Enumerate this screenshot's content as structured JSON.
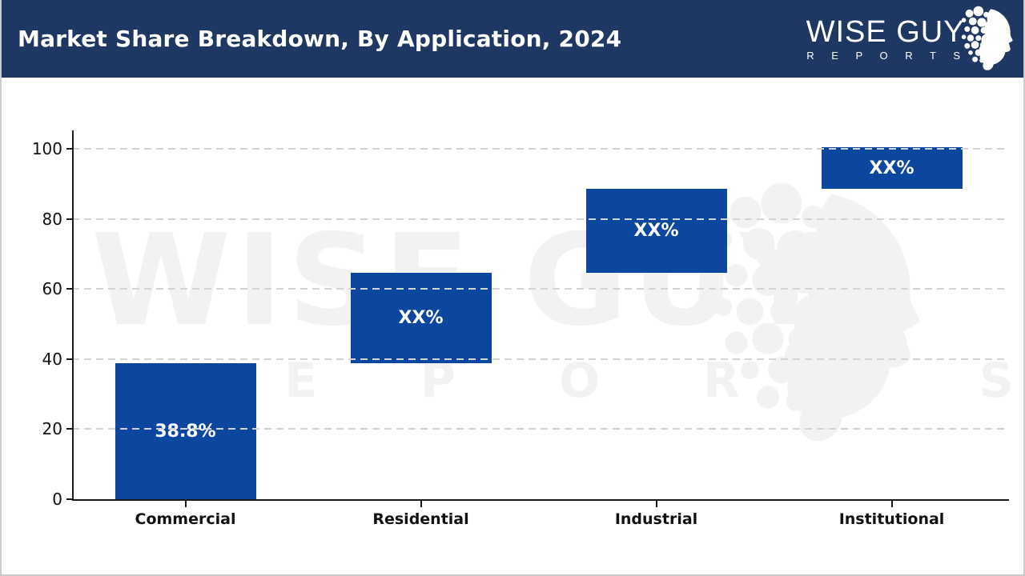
{
  "header": {
    "title": "Market Share Breakdown, By Application, 2024",
    "background_color": "#1f3763",
    "logo": {
      "name": "WISE GUY",
      "subname": "R E P O R T S"
    }
  },
  "watermark": {
    "line1": "WISE GUY",
    "line2": "R E P O R T S"
  },
  "chart_data": {
    "type": "bar",
    "subtype": "waterfall",
    "title": "Market Share Breakdown, By Application, 2024",
    "categories": [
      "Commercial",
      "Residential",
      "Industrial",
      "Institutional"
    ],
    "segments": [
      {
        "category": "Commercial",
        "start": 0,
        "end": 38.8,
        "label": "38.8%"
      },
      {
        "category": "Residential",
        "start": 38.8,
        "end": 64.5,
        "label": "XX%"
      },
      {
        "category": "Industrial",
        "start": 64.5,
        "end": 88.5,
        "label": "XX%"
      },
      {
        "category": "Institutional",
        "start": 88.5,
        "end": 100.4,
        "label": "XX%"
      }
    ],
    "xlabel": "",
    "ylabel": "",
    "ylim": [
      0,
      105
    ],
    "yticks": [
      0,
      20,
      40,
      60,
      80,
      100
    ],
    "grid": "horizontal-dashed, drawn above bars",
    "legend": "none",
    "bar_color": "#0b479f",
    "bar_label_color": "#ffffff",
    "axis_color": "#1a1a1a",
    "gridline_color": "#d4d4d4"
  }
}
